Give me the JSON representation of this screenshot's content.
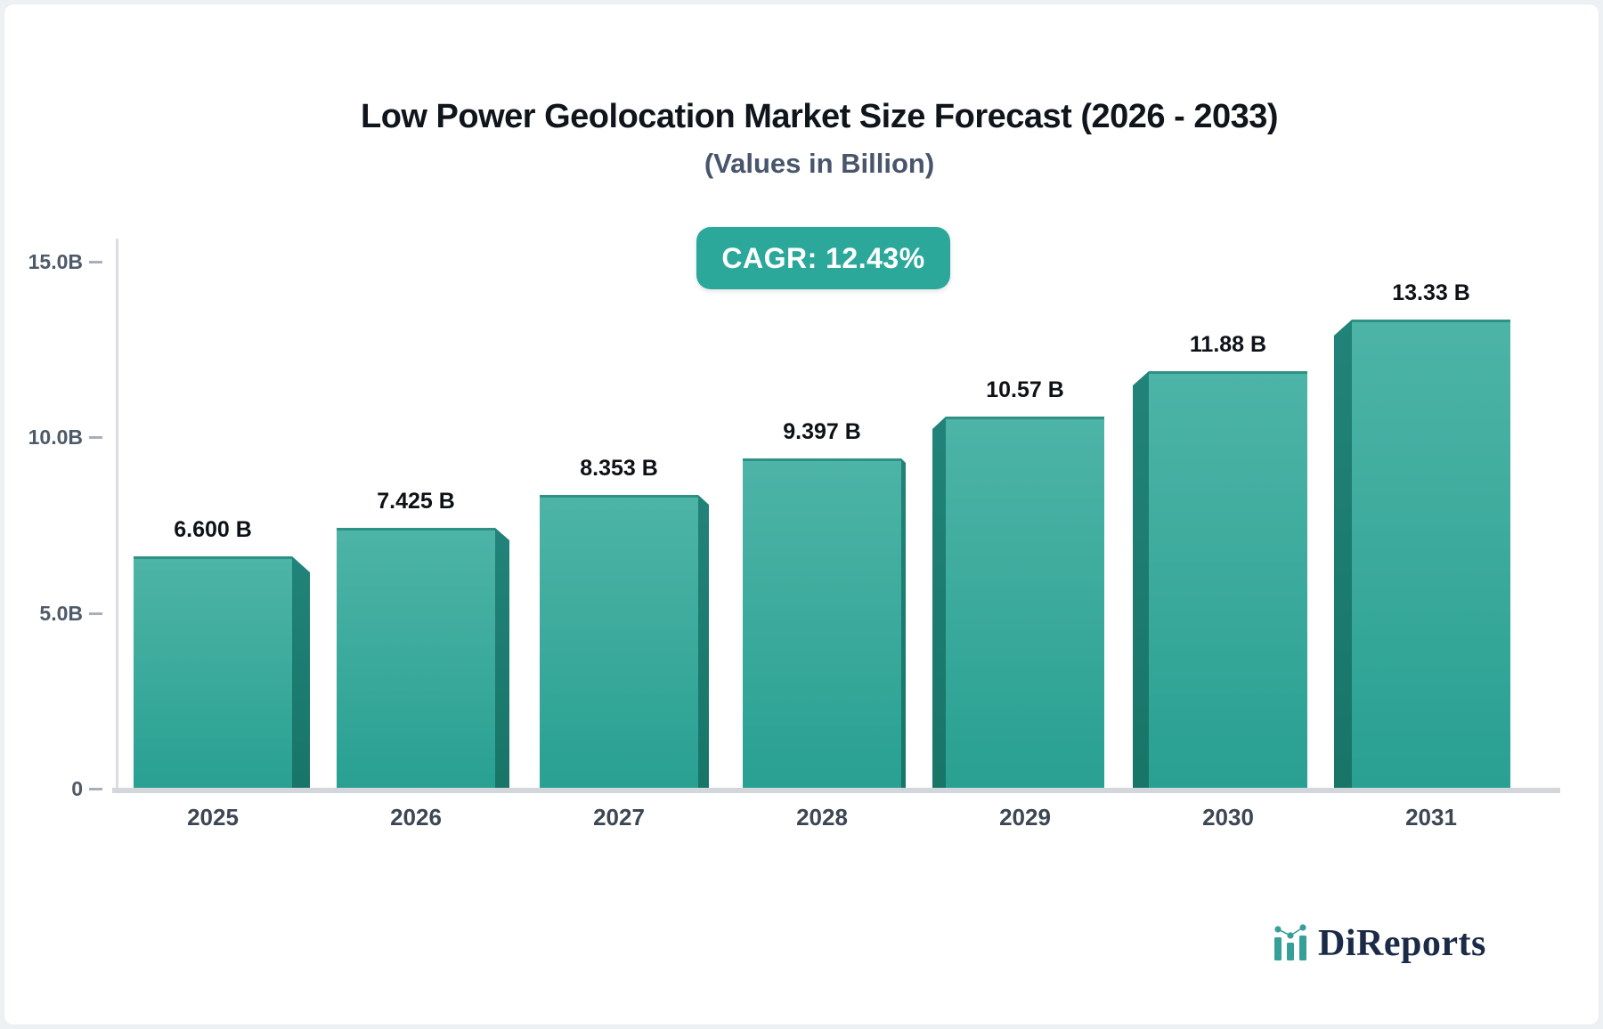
{
  "header": {
    "cagr_badge": "CAGR: 12.43%"
  },
  "chart_data": {
    "type": "bar",
    "title": "Low Power Geolocation Market Size Forecast (2026 - 2033)",
    "subtitle": "(Values in Billion)",
    "categories": [
      "2025",
      "2026",
      "2027",
      "2028",
      "2029",
      "2030",
      "2031"
    ],
    "values": [
      6.6,
      7.425,
      8.353,
      9.397,
      10.57,
      11.88,
      13.33
    ],
    "bar_labels": [
      "6.600 B",
      "7.425 B",
      "8.353 B",
      "9.397 B",
      "10.57 B",
      "11.88 B",
      "13.33 B"
    ],
    "yticks": [
      {
        "label": "15.0B",
        "value": 15
      },
      {
        "label": "10.0B",
        "value": 10
      },
      {
        "label": "5.0B",
        "value": 5
      },
      {
        "label": "0",
        "value": 0
      }
    ],
    "ylim": [
      0,
      15
    ],
    "xlabel": "",
    "ylabel": "",
    "grid": false,
    "legend_position": "none",
    "annotation": "CAGR: 12.43%"
  },
  "colors": {
    "bar_face_top": "#4db4a7",
    "bar_face_mid": "#39a99b",
    "bar_face_bottom": "#28a092",
    "bar_top_edge": "#2e9184",
    "bar_side_top": "#218379",
    "bar_side_bottom": "#187568",
    "badge_bg": "#2ca89b",
    "axis_line": "#d3d6db",
    "logo_teal": "#36a098",
    "logo_navy": "#1b2a47"
  },
  "branding": {
    "logo_text": "DiReports",
    "logo_icon": "mini-bar-line-chart-icon"
  }
}
